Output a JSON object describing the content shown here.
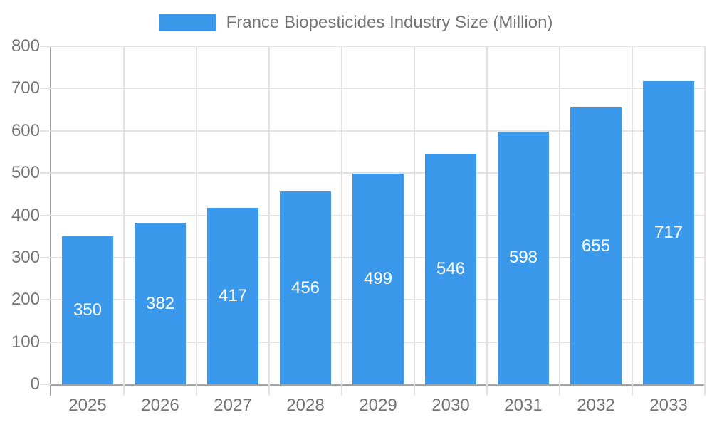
{
  "legend": {
    "label": "France Biopesticides Industry Size (Million)"
  },
  "chart_data": {
    "type": "bar",
    "title": "France Biopesticides Industry Size (Million)",
    "categories": [
      "2025",
      "2026",
      "2027",
      "2028",
      "2029",
      "2030",
      "2031",
      "2032",
      "2033"
    ],
    "values": [
      350,
      382,
      417,
      456,
      499,
      546,
      598,
      655,
      717
    ],
    "xlabel": "",
    "ylabel": "",
    "ylim": [
      0,
      800
    ],
    "ytick_step": 100,
    "yticks": [
      0,
      100,
      200,
      300,
      400,
      500,
      600,
      700,
      800
    ],
    "grid": true,
    "legend_position": "top",
    "colors": {
      "bar": "#3B99EC",
      "value_label": "#FFFFFF",
      "axis_text": "#757575",
      "gridline": "#E3E3E3",
      "axis_line": "#A3A3A3",
      "background": "#FFFFFF"
    }
  }
}
